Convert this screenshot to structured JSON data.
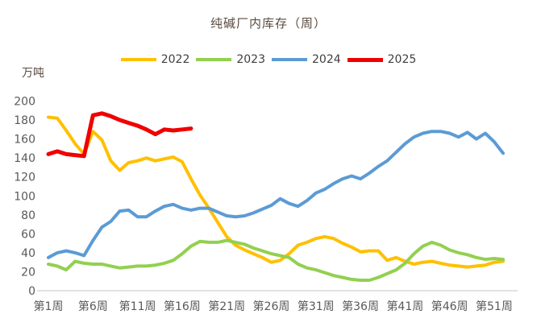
{
  "title": "纯碱厂内库存（周）",
  "unit_label": "万吨",
  "colors": {
    "axis_line": "#d9d9d9",
    "tick_text": "#595959",
    "title_text": "#5b4a3f"
  },
  "legend": [
    {
      "label": "2022",
      "color": "#FFC000"
    },
    {
      "label": "2023",
      "color": "#92D050"
    },
    {
      "label": "2024",
      "color": "#5B9BD5"
    },
    {
      "label": "2025",
      "color": "#F00000"
    }
  ],
  "chart_data": {
    "type": "line",
    "title": "纯碱厂内库存（周）",
    "ylabel": "万吨",
    "ylim": [
      0,
      200
    ],
    "y_ticks": [
      0,
      20,
      40,
      60,
      80,
      100,
      120,
      140,
      160,
      180,
      200
    ],
    "weeks_total": 52,
    "x_ticks": [
      {
        "week": 1,
        "label": "第1周"
      },
      {
        "week": 6,
        "label": "第6周"
      },
      {
        "week": 11,
        "label": "第11周"
      },
      {
        "week": 16,
        "label": "第16周"
      },
      {
        "week": 21,
        "label": "第21周"
      },
      {
        "week": 26,
        "label": "第26周"
      },
      {
        "week": 31,
        "label": "第31周"
      },
      {
        "week": 36,
        "label": "第36周"
      },
      {
        "week": 41,
        "label": "第41周"
      },
      {
        "week": 46,
        "label": "第46周"
      },
      {
        "week": 51,
        "label": "第51周"
      }
    ],
    "grid": false,
    "legend_position": "top",
    "series": [
      {
        "name": "2022",
        "color": "#FFC000",
        "stroke_width": 4,
        "start_week": 1,
        "values": [
          183,
          182,
          169,
          155,
          144,
          168,
          159,
          137,
          127,
          135,
          137,
          140,
          137,
          139,
          141,
          136,
          118,
          101,
          87,
          72,
          57,
          48,
          43,
          39,
          35,
          30,
          32,
          39,
          48,
          51,
          55,
          57,
          55,
          50,
          46,
          41,
          42,
          42,
          32,
          35,
          31,
          28,
          30,
          31,
          29,
          27,
          26,
          25,
          26,
          27,
          30,
          31
        ]
      },
      {
        "name": "2023",
        "color": "#92D050",
        "stroke_width": 4,
        "start_week": 1,
        "values": [
          28,
          26,
          22,
          31,
          29,
          28,
          28,
          26,
          24,
          25,
          26,
          26,
          27,
          29,
          32,
          39,
          47,
          52,
          51,
          51,
          53,
          51,
          49,
          45,
          42,
          39,
          37,
          35,
          28,
          24,
          22,
          19,
          16,
          14,
          12,
          11,
          11,
          14,
          18,
          22,
          29,
          39,
          47,
          51,
          48,
          43,
          40,
          38,
          35,
          33,
          34,
          33
        ]
      },
      {
        "name": "2024",
        "color": "#5B9BD5",
        "stroke_width": 4,
        "start_week": 1,
        "values": [
          35,
          40,
          42,
          40,
          37,
          53,
          67,
          73,
          84,
          85,
          78,
          78,
          84,
          89,
          91,
          87,
          85,
          87,
          87,
          83,
          79,
          78,
          79,
          82,
          86,
          90,
          97,
          92,
          89,
          95,
          103,
          107,
          113,
          118,
          121,
          118,
          124,
          131,
          137,
          146,
          155,
          162,
          166,
          168,
          168,
          166,
          162,
          167,
          160,
          166,
          157,
          145
        ]
      },
      {
        "name": "2025",
        "color": "#F00000",
        "stroke_width": 5,
        "start_week": 1,
        "values": [
          144,
          147,
          144,
          143,
          142,
          185,
          187,
          184,
          180,
          177,
          174,
          170,
          165,
          170,
          169,
          170,
          171
        ]
      }
    ]
  }
}
